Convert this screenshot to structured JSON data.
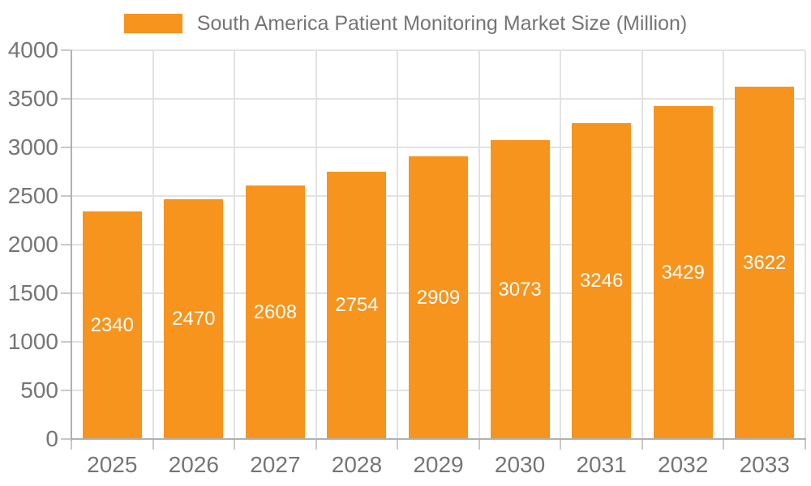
{
  "chart_data": {
    "type": "bar",
    "title": "South America Patient Monitoring Market Size (Million)",
    "legend_entries": [
      "South America Patient Monitoring Market Size (Million)"
    ],
    "legend_position": "top-center",
    "categories": [
      "2025",
      "2026",
      "2027",
      "2028",
      "2029",
      "2030",
      "2031",
      "2032",
      "2033"
    ],
    "values": [
      2340,
      2470,
      2608,
      2754,
      2909,
      3073,
      3246,
      3429,
      3622
    ],
    "xlabel": "",
    "ylabel": "",
    "ylim": [
      0,
      4000
    ],
    "ytick_step": 500,
    "yticks": [
      0,
      500,
      1000,
      1500,
      2000,
      2500,
      3000,
      3500,
      4000
    ],
    "grid": true,
    "bar_labels_inside": true
  },
  "colors": {
    "accent": "#F7941E",
    "background": "#FFFFFF",
    "axis_text": "#757575",
    "legend_text": "#757575",
    "axis_line": "#B0B0B0",
    "tick_line": "#C9C9C9",
    "grid_line": "#E2E2E2",
    "bar_label": "#FFFFFF"
  }
}
